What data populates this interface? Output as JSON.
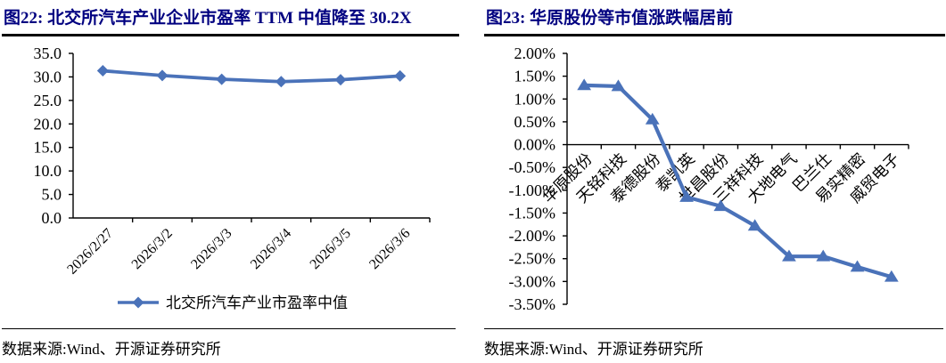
{
  "fig22": {
    "title": "图22: 北交所汽车产业企业市盈率 TTM 中值降至 30.2X",
    "source_note": "数据来源:Wind、开源证券研究所",
    "legend_label": "北交所汽车产业市盈率中值"
  },
  "fig23": {
    "title": "图23: 华原股份等市值涨跌幅居前",
    "source_note": "数据来源:Wind、开源证券研究所"
  },
  "colors": {
    "accent": "#4A72B9",
    "title_text": "#000080",
    "axis": "#000000",
    "text": "#000000"
  },
  "chart_data": [
    {
      "type": "line",
      "marker": "diamond",
      "title": "北交所汽车产业企业市盈率TTM中值",
      "categories": [
        "2026/2/27",
        "2026/3/2",
        "2026/3/3",
        "2026/3/4",
        "2026/3/5",
        "2026/3/6"
      ],
      "values": [
        31.3,
        30.3,
        29.5,
        29.0,
        29.4,
        30.2
      ],
      "xlabel": "",
      "ylabel": "",
      "ylim": [
        0,
        35
      ],
      "ytick_step": 5,
      "ytick_labels": [
        "35.0",
        "30.0",
        "25.0",
        "20.0",
        "15.0",
        "10.0",
        "5.0",
        "0.0"
      ],
      "y_format": "decimal1",
      "grid": false,
      "legend": [
        "北交所汽车产业市盈率中值"
      ],
      "legend_position": "bottom"
    },
    {
      "type": "line",
      "marker": "triangle",
      "title": "华原股份等市值涨跌幅居前",
      "categories": [
        "华原股份",
        "天铭科技",
        "泰德股份",
        "泰凯英",
        "世昌股份",
        "三祥科技",
        "大地电气",
        "巴兰仕",
        "易实精密",
        "威贸电子"
      ],
      "values": [
        1.3,
        1.28,
        0.55,
        -1.15,
        -1.35,
        -1.78,
        -2.45,
        -2.45,
        -2.68,
        -2.9
      ],
      "xlabel": "",
      "ylabel": "",
      "ylim": [
        -3.5,
        2.0
      ],
      "ytick_step": 0.5,
      "ytick_labels": [
        "2.00%",
        "1.50%",
        "1.00%",
        "0.50%",
        "0.00%",
        "-0.50%",
        "-1.00%",
        "-1.50%",
        "-2.00%",
        "-2.50%",
        "-3.00%",
        "-3.50%"
      ],
      "y_format": "percent2",
      "grid": false,
      "legend": [],
      "legend_position": "none"
    }
  ]
}
